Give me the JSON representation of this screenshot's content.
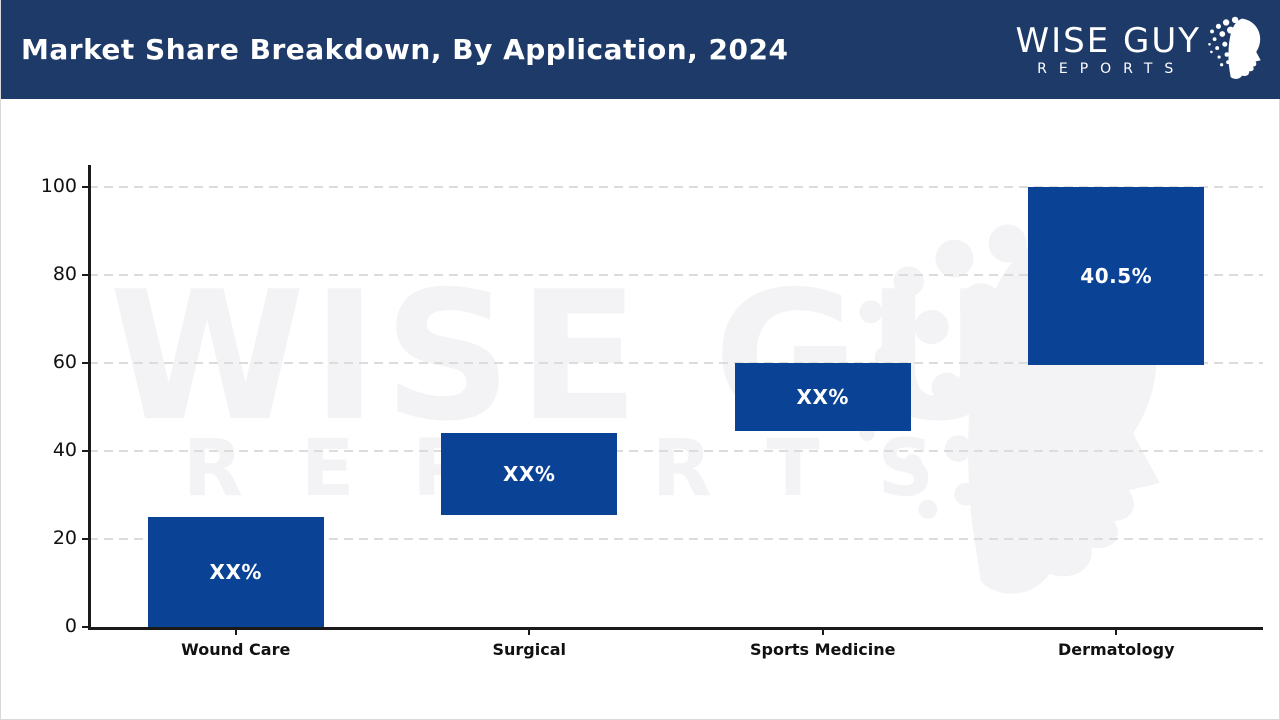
{
  "header": {
    "title": "Market Share Breakdown, By Application, 2024",
    "brand": {
      "line1": "WISE GUY",
      "line2": "REPORTS"
    }
  },
  "watermark": {
    "line1": "WISE GUY",
    "line2": "REPORTS"
  },
  "colors": {
    "header_navy": "#1e3a68",
    "bar_blue": "#0a4296",
    "bar_label_white": "#ffffff",
    "gridline_gray": "#dcdcdc",
    "watermark_gray": "#f3f3f5",
    "axis_black": "#1a1a1a"
  },
  "chart_data": {
    "type": "bar",
    "subtype": "floating-waterfall",
    "title": "Market Share Breakdown, By Application, 2024",
    "xlabel": "",
    "ylabel": "",
    "ylim": [
      0,
      105
    ],
    "yticks": [
      0,
      20,
      40,
      60,
      80,
      100
    ],
    "grid": "horizontal-dashed",
    "legend": "none",
    "categories": [
      "Wound Care",
      "Surgical",
      "Sports Medicine",
      "Dermatology"
    ],
    "segments": [
      {
        "category": "Wound Care",
        "start": 0,
        "end": 25,
        "label": "XX%"
      },
      {
        "category": "Surgical",
        "start": 25.5,
        "end": 44,
        "label": "XX%"
      },
      {
        "category": "Sports Medicine",
        "start": 44.5,
        "end": 60,
        "label": "XX%"
      },
      {
        "category": "Dermatology",
        "start": 59.5,
        "end": 100,
        "label": "40.5%"
      }
    ]
  }
}
